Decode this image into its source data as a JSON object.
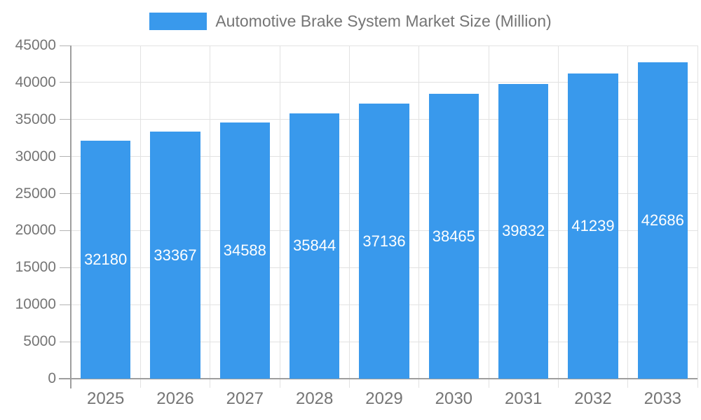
{
  "chart_data": {
    "type": "bar",
    "title": "Automotive Brake System Market Size (Million)",
    "legend": {
      "label": "Automotive Brake System Market Size (Million)",
      "position": "top"
    },
    "categories": [
      "2025",
      "2026",
      "2027",
      "2028",
      "2029",
      "2030",
      "2031",
      "2032",
      "2033"
    ],
    "values": [
      32180,
      33367,
      34588,
      35844,
      37136,
      38465,
      39832,
      41239,
      42686
    ],
    "value_labels": [
      "32180",
      "33367",
      "34588",
      "35844",
      "37136",
      "38465",
      "39832",
      "41239",
      "42686"
    ],
    "xlabel": "",
    "ylabel": "",
    "ylim": [
      0,
      45000
    ],
    "ytick_step": 5000,
    "ytick_labels": [
      "0",
      "5000",
      "10000",
      "15000",
      "20000",
      "25000",
      "30000",
      "35000",
      "40000",
      "45000"
    ],
    "grid": true,
    "colors": {
      "bar": "#3999EC",
      "grid": "#E2E2E2",
      "axis": "#9E9E9E",
      "tick": "#B3B3B3",
      "tick_label": "#757575",
      "value_label": "#FFFFFF",
      "background": "#FFFFFF"
    }
  }
}
